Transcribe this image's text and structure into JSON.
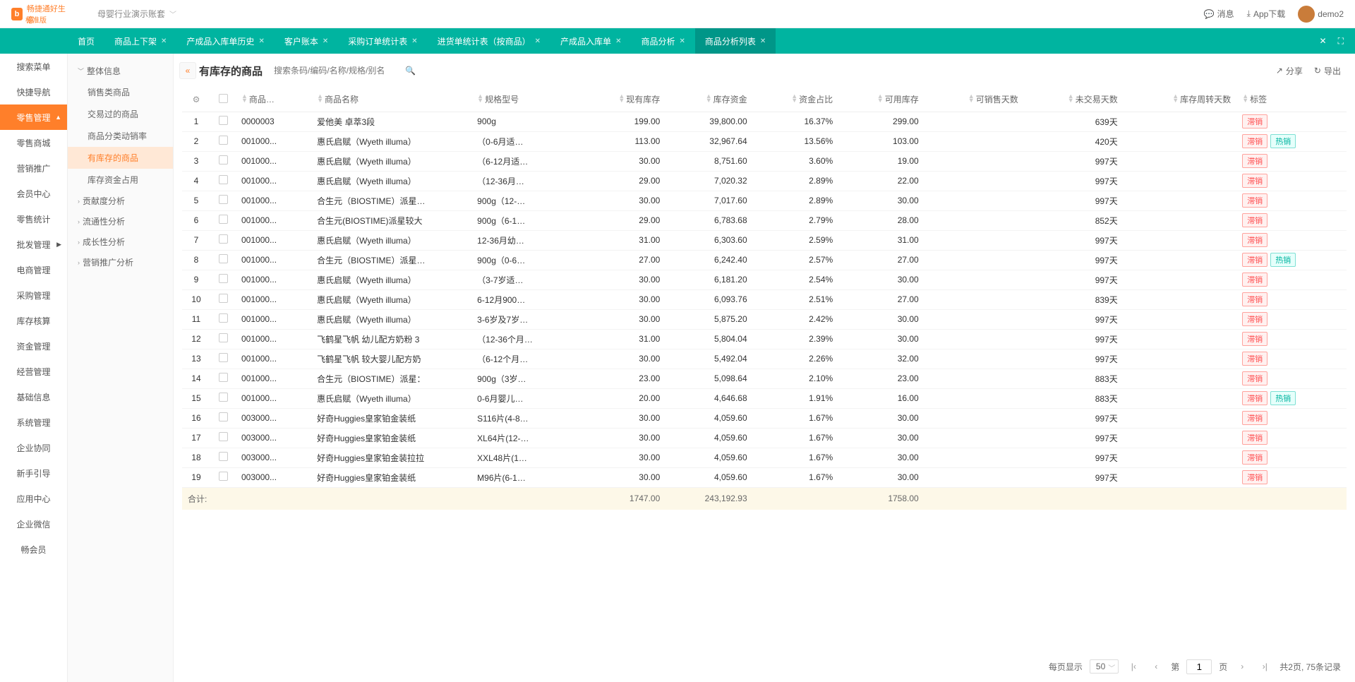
{
  "header": {
    "brand_text": "畅捷通好生意",
    "brand_sub": "标准版",
    "account": "母婴行业演示账套",
    "msg": "消息",
    "app": "App下载",
    "user": "demo2"
  },
  "tabs": {
    "items": [
      {
        "label": "首页",
        "closable": false
      },
      {
        "label": "商品上下架",
        "closable": true
      },
      {
        "label": "产成品入库单历史",
        "closable": true
      },
      {
        "label": "客户账本",
        "closable": true
      },
      {
        "label": "采购订单统计表",
        "closable": true
      },
      {
        "label": "进货单统计表（按商品）",
        "closable": true
      },
      {
        "label": "产成品入库单",
        "closable": true
      },
      {
        "label": "商品分析",
        "closable": true
      },
      {
        "label": "商品分析列表",
        "closable": true,
        "active": true
      }
    ]
  },
  "leftnav": {
    "items": [
      {
        "label": "搜索菜单"
      },
      {
        "label": "快捷导航"
      },
      {
        "label": "零售管理",
        "active": true,
        "arrow": "▲"
      },
      {
        "label": "零售商城"
      },
      {
        "label": "营销推广"
      },
      {
        "label": "会员中心"
      },
      {
        "label": "零售统计"
      },
      {
        "label": "批发管理",
        "arrow": "▶"
      },
      {
        "label": "电商管理"
      },
      {
        "label": "采购管理"
      },
      {
        "label": "库存核算"
      },
      {
        "label": "资金管理"
      },
      {
        "label": "经营管理"
      },
      {
        "label": "基础信息"
      },
      {
        "label": "系统管理"
      },
      {
        "label": "企业协同"
      },
      {
        "label": "新手引导"
      },
      {
        "label": "应用中心"
      },
      {
        "label": "企业微信"
      },
      {
        "label": "畅会员"
      }
    ]
  },
  "subnav": {
    "group1": {
      "label": "整体信息",
      "arrow": "﹀"
    },
    "group1_items": [
      {
        "label": "销售类商品"
      },
      {
        "label": "交易过的商品"
      },
      {
        "label": "商品分类动销率"
      },
      {
        "label": "有库存的商品",
        "highlight": true
      },
      {
        "label": "库存资金占用"
      }
    ],
    "groups": [
      {
        "label": "贡献度分析",
        "arrow": "›"
      },
      {
        "label": "流通性分析",
        "arrow": "›"
      },
      {
        "label": "成长性分析",
        "arrow": "›"
      },
      {
        "label": "营销推广分析",
        "arrow": "›"
      }
    ]
  },
  "page": {
    "title": "有库存的商品",
    "search_placeholder": "搜索条码/编码/名称/规格/别名",
    "share": "分享",
    "export": "导出"
  },
  "table": {
    "columns": [
      "",
      "",
      "商品…",
      "商品名称",
      "规格型号",
      "现有库存",
      "库存资金",
      "资金占比",
      "可用库存",
      "可销售天数",
      "未交易天数",
      "库存周转天数",
      "标签"
    ],
    "rows": [
      {
        "idx": "1",
        "code": "0000003",
        "name": "爱他美 卓萃3段",
        "spec": "900g",
        "stock": "199.00",
        "fund": "39,800.00",
        "pct": "16.37%",
        "avail": "299.00",
        "sell": "",
        "untrade": "639天",
        "turn": "",
        "tags": [
          "滞销"
        ]
      },
      {
        "idx": "2",
        "code": "001000...",
        "name": "惠氏启赋（Wyeth illuma）",
        "spec": "（0-6月适…",
        "stock": "113.00",
        "fund": "32,967.64",
        "pct": "13.56%",
        "avail": "103.00",
        "sell": "",
        "untrade": "420天",
        "turn": "",
        "tags": [
          "滞销",
          "热销"
        ]
      },
      {
        "idx": "3",
        "code": "001000...",
        "name": "惠氏启赋（Wyeth illuma）",
        "spec": "（6-12月适…",
        "stock": "30.00",
        "fund": "8,751.60",
        "pct": "3.60%",
        "avail": "19.00",
        "sell": "",
        "untrade": "997天",
        "turn": "",
        "tags": [
          "滞销"
        ]
      },
      {
        "idx": "4",
        "code": "001000...",
        "name": "惠氏启赋（Wyeth illuma）",
        "spec": "（12-36月…",
        "stock": "29.00",
        "fund": "7,020.32",
        "pct": "2.89%",
        "avail": "22.00",
        "sell": "",
        "untrade": "997天",
        "turn": "",
        "tags": [
          "滞销"
        ]
      },
      {
        "idx": "5",
        "code": "001000...",
        "name": "合生元（BIOSTIME）派星…",
        "spec": "900g（12-…",
        "stock": "30.00",
        "fund": "7,017.60",
        "pct": "2.89%",
        "avail": "30.00",
        "sell": "",
        "untrade": "997天",
        "turn": "",
        "tags": [
          "滞销"
        ]
      },
      {
        "idx": "6",
        "code": "001000...",
        "name": "合生元(BIOSTIME)派星较大",
        "spec": "900g（6-1…",
        "stock": "29.00",
        "fund": "6,783.68",
        "pct": "2.79%",
        "avail": "28.00",
        "sell": "",
        "untrade": "852天",
        "turn": "",
        "tags": [
          "滞销"
        ]
      },
      {
        "idx": "7",
        "code": "001000...",
        "name": "惠氏启赋（Wyeth illuma）",
        "spec": "12-36月幼…",
        "stock": "31.00",
        "fund": "6,303.60",
        "pct": "2.59%",
        "avail": "31.00",
        "sell": "",
        "untrade": "997天",
        "turn": "",
        "tags": [
          "滞销"
        ]
      },
      {
        "idx": "8",
        "code": "001000...",
        "name": "合生元（BIOSTIME）派星…",
        "spec": "900g（0-6…",
        "stock": "27.00",
        "fund": "6,242.40",
        "pct": "2.57%",
        "avail": "27.00",
        "sell": "",
        "untrade": "997天",
        "turn": "",
        "tags": [
          "滞销",
          "热销"
        ]
      },
      {
        "idx": "9",
        "code": "001000...",
        "name": "惠氏启赋（Wyeth illuma）",
        "spec": "（3-7岁适…",
        "stock": "30.00",
        "fund": "6,181.20",
        "pct": "2.54%",
        "avail": "30.00",
        "sell": "",
        "untrade": "997天",
        "turn": "",
        "tags": [
          "滞销"
        ]
      },
      {
        "idx": "10",
        "code": "001000...",
        "name": "惠氏启赋（Wyeth illuma）",
        "spec": "6-12月900…",
        "stock": "30.00",
        "fund": "6,093.76",
        "pct": "2.51%",
        "avail": "27.00",
        "sell": "",
        "untrade": "839天",
        "turn": "",
        "tags": [
          "滞销"
        ]
      },
      {
        "idx": "11",
        "code": "001000...",
        "name": "惠氏启赋（Wyeth illuma）",
        "spec": "3-6岁及7岁…",
        "stock": "30.00",
        "fund": "5,875.20",
        "pct": "2.42%",
        "avail": "30.00",
        "sell": "",
        "untrade": "997天",
        "turn": "",
        "tags": [
          "滞销"
        ]
      },
      {
        "idx": "12",
        "code": "001000...",
        "name": "飞鹤星飞帆 幼儿配方奶粉 3",
        "spec": "（12-36个月…",
        "stock": "31.00",
        "fund": "5,804.04",
        "pct": "2.39%",
        "avail": "30.00",
        "sell": "",
        "untrade": "997天",
        "turn": "",
        "tags": [
          "滞销"
        ]
      },
      {
        "idx": "13",
        "code": "001000...",
        "name": "飞鹤星飞帆 较大婴儿配方奶",
        "spec": "（6-12个月…",
        "stock": "30.00",
        "fund": "5,492.04",
        "pct": "2.26%",
        "avail": "32.00",
        "sell": "",
        "untrade": "997天",
        "turn": "",
        "tags": [
          "滞销"
        ]
      },
      {
        "idx": "14",
        "code": "001000...",
        "name": "合生元（BIOSTIME）派星：",
        "spec": "900g（3岁…",
        "stock": "23.00",
        "fund": "5,098.64",
        "pct": "2.10%",
        "avail": "23.00",
        "sell": "",
        "untrade": "883天",
        "turn": "",
        "tags": [
          "滞销"
        ]
      },
      {
        "idx": "15",
        "code": "001000...",
        "name": "惠氏启赋（Wyeth illuma）",
        "spec": "0-6月婴儿…",
        "stock": "20.00",
        "fund": "4,646.68",
        "pct": "1.91%",
        "avail": "16.00",
        "sell": "",
        "untrade": "883天",
        "turn": "",
        "tags": [
          "滞销",
          "热销"
        ]
      },
      {
        "idx": "16",
        "code": "003000...",
        "name": "好奇Huggies皇家铂金装纸",
        "spec": "S116片(4-8…",
        "stock": "30.00",
        "fund": "4,059.60",
        "pct": "1.67%",
        "avail": "30.00",
        "sell": "",
        "untrade": "997天",
        "turn": "",
        "tags": [
          "滞销"
        ]
      },
      {
        "idx": "17",
        "code": "003000...",
        "name": "好奇Huggies皇家铂金装纸",
        "spec": "XL64片(12-…",
        "stock": "30.00",
        "fund": "4,059.60",
        "pct": "1.67%",
        "avail": "30.00",
        "sell": "",
        "untrade": "997天",
        "turn": "",
        "tags": [
          "滞销"
        ]
      },
      {
        "idx": "18",
        "code": "003000...",
        "name": "好奇Huggies皇家铂金装拉拉",
        "spec": "XXL48片(1…",
        "stock": "30.00",
        "fund": "4,059.60",
        "pct": "1.67%",
        "avail": "30.00",
        "sell": "",
        "untrade": "997天",
        "turn": "",
        "tags": [
          "滞销"
        ]
      },
      {
        "idx": "19",
        "code": "003000...",
        "name": "好奇Huggies皇家铂金装纸",
        "spec": "M96片(6-1…",
        "stock": "30.00",
        "fund": "4,059.60",
        "pct": "1.67%",
        "avail": "30.00",
        "sell": "",
        "untrade": "997天",
        "turn": "",
        "tags": [
          "滞销"
        ]
      }
    ],
    "footer": {
      "label": "合计:",
      "stock": "1747.00",
      "fund": "243,192.93",
      "avail": "1758.00"
    }
  },
  "pagination": {
    "perpage_label": "每页显示",
    "perpage_val": "50",
    "page_prefix": "第",
    "page_val": "1",
    "page_suffix": "页",
    "total": "共2页, 75条记录"
  }
}
